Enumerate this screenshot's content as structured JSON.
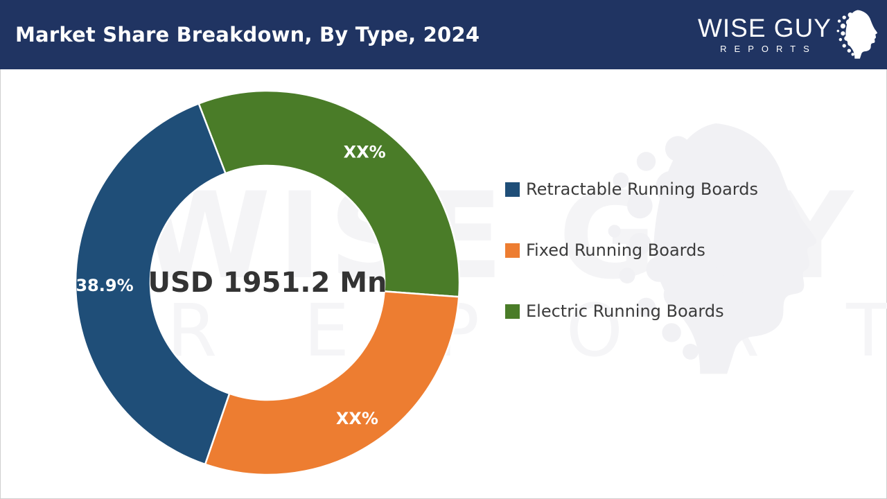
{
  "header": {
    "title": "Market Share Breakdown, By Type, 2024",
    "bg_color": "#203462",
    "logo": {
      "line1": "WISE GUY",
      "line2": "REPORTS"
    }
  },
  "chart_data": {
    "type": "donut",
    "title": "Market Share Breakdown, By Type, 2024",
    "center_label": "USD 1951.2 Mn",
    "start_angle_deg": -21,
    "inner_radius_ratio": 0.61,
    "segments": [
      {
        "name": "Electric Running Boards",
        "label": "XX%",
        "pct": 32.0,
        "color": "#4a7c28"
      },
      {
        "name": "Fixed Running Boards",
        "label": "XX%",
        "pct": 29.1,
        "color": "#ed7d31"
      },
      {
        "name": "Retractable Running Boards",
        "label": "38.9%",
        "pct": 38.9,
        "color": "#1f4e78"
      }
    ],
    "legend_position": "right",
    "notes": "Only the Retractable slice percentage (38.9%) is shown; other slices are masked as XX%. Slice sizes estimated from drawn arc angles."
  },
  "legend": {
    "items": [
      {
        "label": "Retractable Running Boards",
        "color": "#1f4e78"
      },
      {
        "label": "Fixed Running Boards",
        "color": "#ed7d31"
      },
      {
        "label": "Electric Running Boards",
        "color": "#4a7c28"
      }
    ]
  },
  "watermark": {
    "line1": "WISE GUY",
    "line2": "R E P O R T S"
  },
  "colors": {
    "header_bg": "#203462",
    "center_text": "#333333",
    "legend_text": "#3b3b3b",
    "border": "#cfcfcf",
    "watermark": "#f4f4f6"
  }
}
